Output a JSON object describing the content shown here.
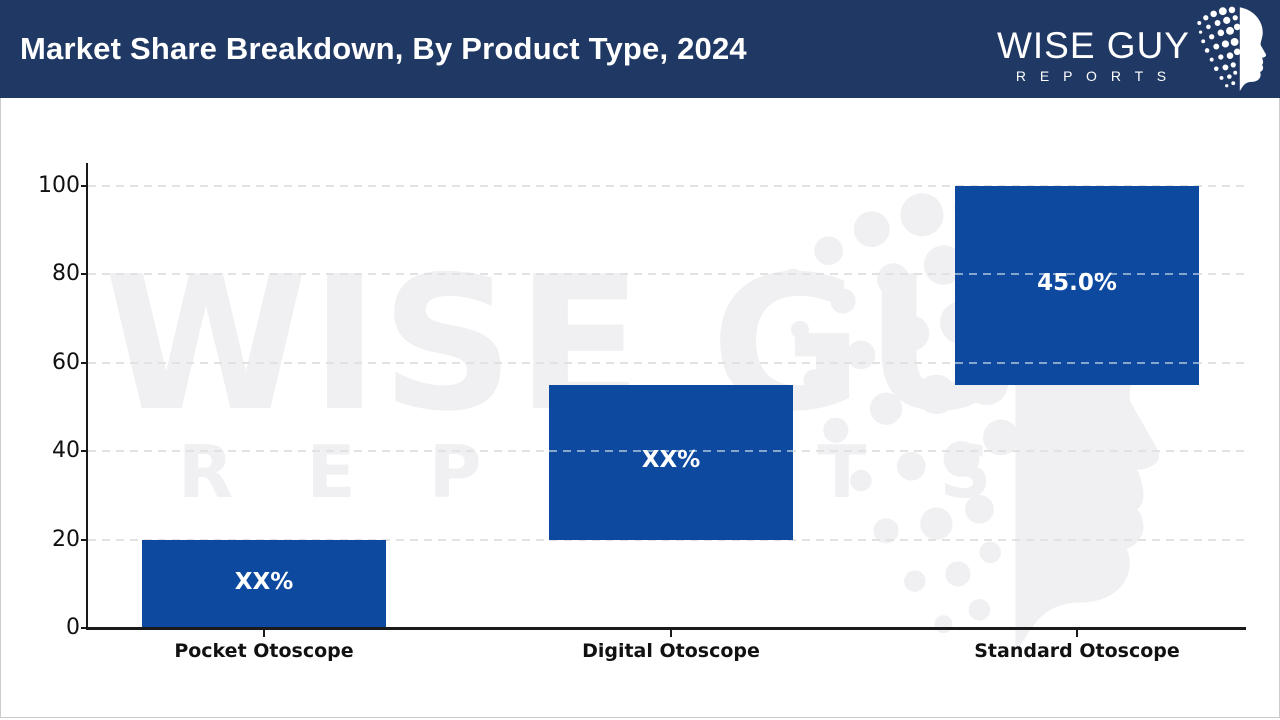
{
  "header": {
    "title": "Market Share Breakdown, By Product Type, 2024",
    "logo": {
      "line1": "WISE GUY",
      "line2": "R E P O R T S"
    }
  },
  "watermark": {
    "line1": "WISE GUY",
    "line2": "R E P O R T S"
  },
  "chart_data": {
    "type": "bar",
    "subtype": "waterfall",
    "title": "Market Share Breakdown, By Product Type, 2024",
    "categories": [
      "Pocket Otoscope",
      "Digital Otoscope",
      "Standard Otoscope"
    ],
    "segments": [
      {
        "label": "Pocket Otoscope",
        "start": 0,
        "end": 20,
        "value_label": "XX%"
      },
      {
        "label": "Digital Otoscope",
        "start": 20,
        "end": 55,
        "value_label": "XX%"
      },
      {
        "label": "Standard Otoscope",
        "start": 55,
        "end": 100,
        "value_label": "45.0%"
      }
    ],
    "xlabel": "",
    "ylabel": "",
    "ylim": [
      0,
      100
    ],
    "yticks": [
      0,
      20,
      40,
      60,
      80,
      100
    ],
    "grid": "horizontal-dashed",
    "legend": "none"
  },
  "colors": {
    "header_bg": "#203864",
    "bar": "#0d4a9f",
    "grid": "#e2e2e2",
    "axis": "#1a1a1a",
    "watermark": "#f0f0f3"
  }
}
